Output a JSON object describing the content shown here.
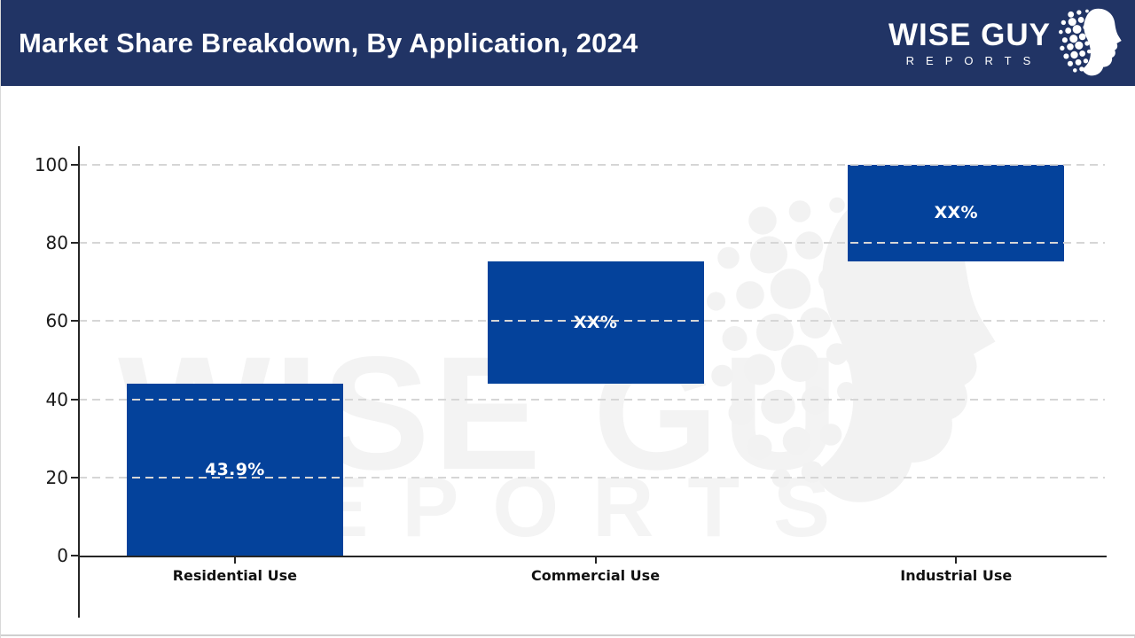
{
  "header": {
    "title": "Market Share Breakdown, By Application, 2024",
    "logo": {
      "line1": "WISE GUY",
      "line2": "REPORTS"
    }
  },
  "watermark": {
    "line1": "WISE GUY",
    "line2": "REPORTS"
  },
  "chart_data": {
    "type": "bar",
    "subtype": "stacked-waterfall",
    "title": "Market Share Breakdown, By Application, 2024",
    "categories": [
      "Residential Use",
      "Commercial Use",
      "Industrial Use"
    ],
    "bars": [
      {
        "category": "Residential Use",
        "start": 0,
        "end": 43.9,
        "value": 43.9,
        "label": "43.9%"
      },
      {
        "category": "Commercial Use",
        "start": 43.9,
        "end": 75.3,
        "value": 31.4,
        "label": "XX%"
      },
      {
        "category": "Industrial Use",
        "start": 75.3,
        "end": 100,
        "value": 24.7,
        "label": "XX%"
      }
    ],
    "xlabel": "",
    "ylabel": "",
    "yticks": [
      0,
      20,
      40,
      60,
      80,
      100
    ],
    "ylim": [
      0,
      100
    ],
    "grid": "horizontal-dashed",
    "legend": "none",
    "bar_color": "#04429b",
    "bar_label_color": "#ffffff"
  },
  "colors": {
    "header_bg": "#213465",
    "bar": "#04429b",
    "axis": "#262626",
    "gridline": "#d6d6d6",
    "watermark": "#f2f2f2"
  }
}
